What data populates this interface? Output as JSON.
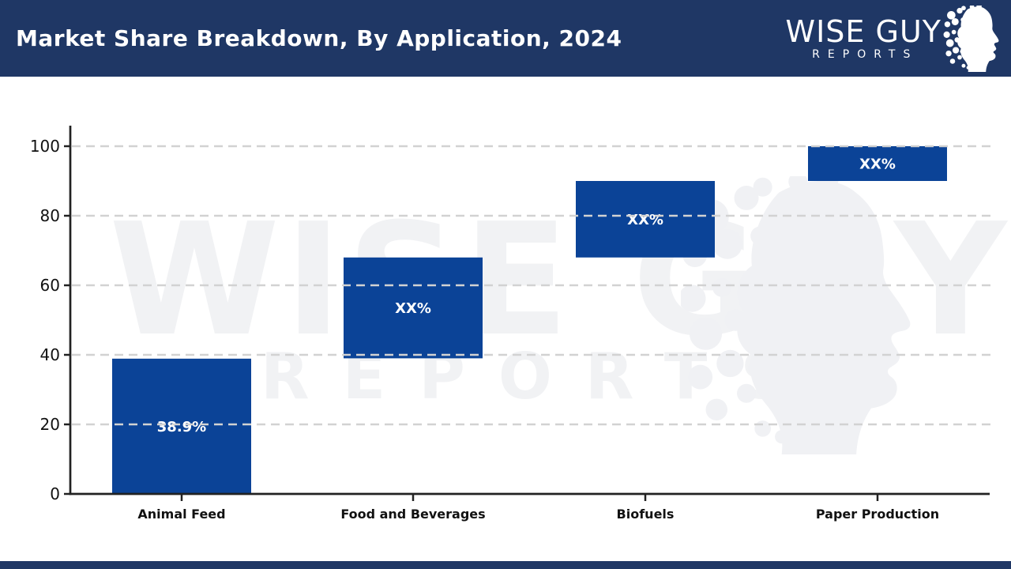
{
  "header": {
    "title": "Market Share Breakdown, By Application, 2024",
    "logo": {
      "line1": "WISE GUY",
      "line2": "REPORTS"
    }
  },
  "watermark": {
    "line1": "WISE GUY",
    "line2": "REPORTS"
  },
  "colors": {
    "header_bg": "#1f3765",
    "footer_bg": "#1f3765",
    "bar": "#0b4397",
    "bar_label": "#ffffff",
    "gridline": "#d2d2d2",
    "axis": "#222222",
    "tick_label": "#111111",
    "watermark": "#f0f1f4"
  },
  "chart_data": {
    "type": "bar",
    "subtype": "floating-range-bars (waterfall style market-share breakdown)",
    "title": "Market Share Breakdown, By Application, 2024",
    "categories": [
      "Animal Feed",
      "Food and Beverages",
      "Biofuels",
      "Paper Production"
    ],
    "series": [
      {
        "name": "Market Share (%)",
        "ranges": [
          [
            0,
            38.9
          ],
          [
            39,
            68
          ],
          [
            68,
            90
          ],
          [
            90,
            100
          ]
        ],
        "segment_sizes_est": [
          38.9,
          29,
          22,
          10
        ]
      }
    ],
    "bar_labels": [
      "38.9%",
      "XX%",
      "XX%",
      "XX%"
    ],
    "xlabel": "",
    "ylabel": "",
    "ylim": [
      0,
      100
    ],
    "yticks": [
      0,
      20,
      40,
      60,
      80,
      100
    ],
    "grid": "horizontal dashed gridlines drawn over bars",
    "legend": "none"
  }
}
